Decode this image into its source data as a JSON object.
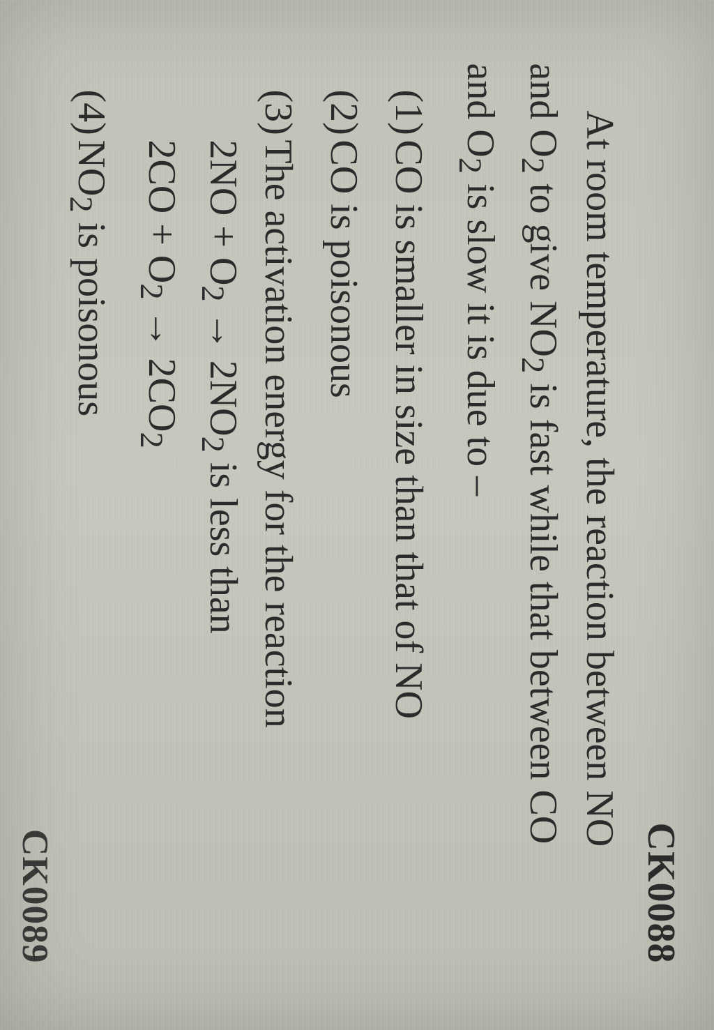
{
  "question_id_top": "CK0088",
  "question_id_bottom_partial": "CK0089",
  "typography": {
    "body_fontsize_pt": 42,
    "bold_fontsize_pt": 42,
    "body_weight": 400,
    "bold_weight": 700,
    "text_color": "#2a2a2a",
    "background_color": "#c2c2b9"
  },
  "stem": {
    "line1": "At room temperature, the reaction between NO",
    "line2_pre": "and O",
    "line2_sub1": "2",
    "line2_mid": " to give NO",
    "line2_sub2": "2",
    "line2_post": " is fast while that between CO",
    "line3_pre": "and O",
    "line3_sub": "2",
    "line3_post": " is slow it is due to –"
  },
  "options": [
    {
      "num": "(1)",
      "lines": [
        {
          "parts": [
            {
              "t": "CO is smaller in size than that of NO"
            }
          ]
        }
      ]
    },
    {
      "num": "(2)",
      "lines": [
        {
          "parts": [
            {
              "t": "CO is poisonous"
            }
          ]
        }
      ]
    },
    {
      "num": "(3)",
      "lines": [
        {
          "parts": [
            {
              "t": "The activation energy for the reaction"
            }
          ]
        },
        {
          "parts": [
            {
              "t": "2NO + O"
            },
            {
              "t": "2",
              "sub": true
            },
            {
              "t": " → 2NO"
            },
            {
              "t": "2",
              "sub": true
            },
            {
              "t": " is less than"
            }
          ]
        },
        {
          "parts": [
            {
              "t": "2CO + O"
            },
            {
              "t": "2",
              "sub": true
            },
            {
              "t": " → 2CO"
            },
            {
              "t": "2",
              "sub": true
            }
          ]
        }
      ]
    },
    {
      "num": "(4)",
      "lines": [
        {
          "parts": [
            {
              "t": "NO"
            },
            {
              "t": "2",
              "sub": true
            },
            {
              "t": " is poisonous"
            }
          ]
        }
      ]
    }
  ]
}
